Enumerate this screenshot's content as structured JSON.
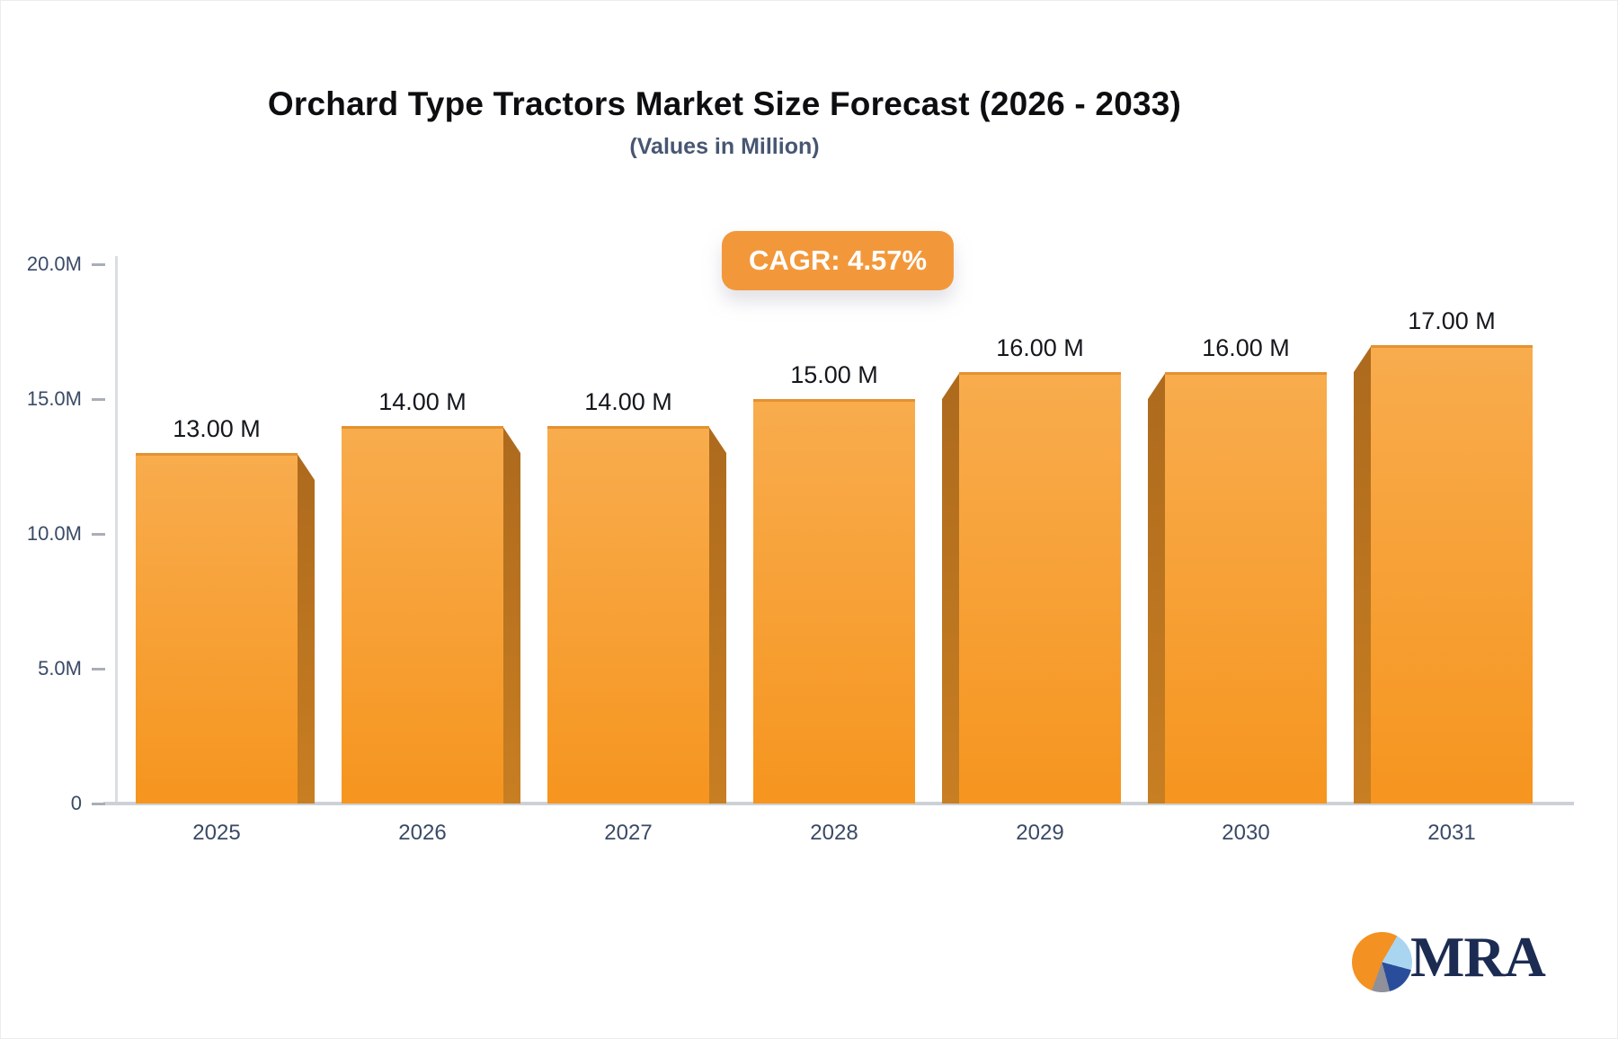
{
  "chart_data": {
    "type": "bar",
    "title": "Orchard Type Tractors Market Size Forecast (2026 - 2033)",
    "subtitle": "(Values in Million)",
    "annotation_badge": "CAGR: 4.57%",
    "categories": [
      "2025",
      "2026",
      "2027",
      "2028",
      "2029",
      "2030",
      "2031"
    ],
    "values": [
      13,
      14,
      14,
      15,
      16,
      16,
      17
    ],
    "value_labels": [
      "13.00 M",
      "14.00 M",
      "14.00 M",
      "15.00 M",
      "16.00 M",
      "16.00 M",
      "17.00 M"
    ],
    "xlabel": "",
    "ylabel": "",
    "ylim": [
      0,
      20
    ],
    "yticks": [
      {
        "value": 0,
        "label": "0"
      },
      {
        "value": 5,
        "label": "5.0M"
      },
      {
        "value": 10,
        "label": "10.0M"
      },
      {
        "value": 15,
        "label": "15.0M"
      },
      {
        "value": 20,
        "label": "20.0M"
      }
    ],
    "grid": false,
    "legend": null,
    "bar_style": "3d"
  },
  "colors": {
    "bar_top": "#F8AC4D",
    "bar_bottom": "#F6951F",
    "bar_side_top": "#AD6A1D",
    "bar_side_bottom": "#C87E22",
    "badge_bg": "#F2983B",
    "axis_text": "#3A4A66",
    "logo_navy": "#1C2B52",
    "logo_orange": "#F39122",
    "logo_lightblue": "#A9D5F1",
    "logo_blue": "#2A4D9B",
    "logo_gray": "#90909A"
  },
  "logo": {
    "text": "MRA",
    "icon": "pie-chart-icon"
  }
}
